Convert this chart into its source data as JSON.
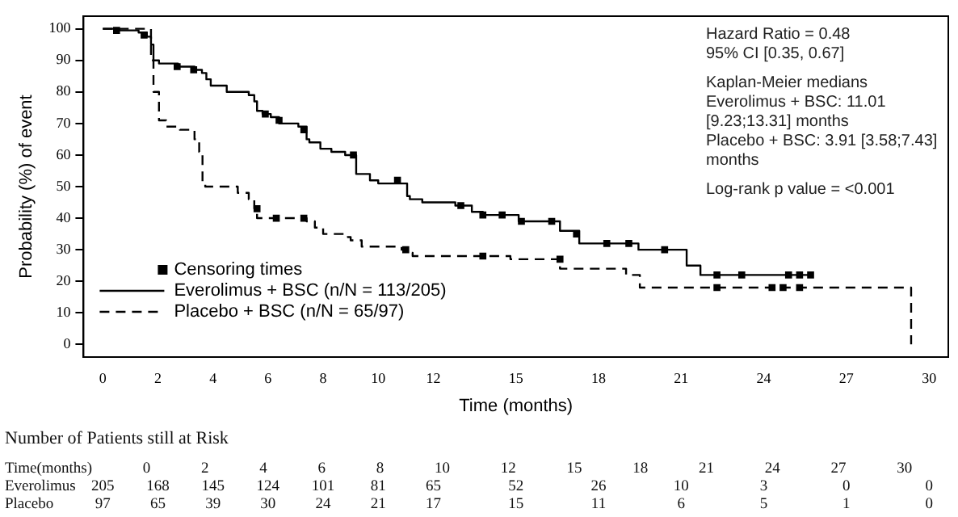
{
  "chart_data": {
    "type": "step",
    "xlabel": "Time (months)",
    "ylabel": "Probability (%) of event",
    "xlim": [
      -0.7,
      30.7
    ],
    "ylim": [
      -4,
      104
    ],
    "xticks": [
      0,
      2,
      4,
      6,
      8,
      10,
      12,
      15,
      18,
      21,
      24,
      27,
      30
    ],
    "yticks": [
      0,
      10,
      20,
      30,
      40,
      50,
      60,
      70,
      80,
      90,
      100
    ],
    "grid": false,
    "legend": "bottom left",
    "series": [
      {
        "name": "Censoring times",
        "type": "scatter",
        "marker": "square",
        "color": "#000000",
        "x": [
          0.5,
          1.5,
          2.7,
          3.3,
          5.9,
          6.4,
          7.3,
          9.1,
          10.7,
          13,
          13.8,
          14.5,
          15.2,
          16.3,
          17.2,
          18.3,
          19.1,
          20.4,
          22.3,
          23.2,
          24.9,
          25.3,
          25.7,
          5.6,
          6.3,
          7.3,
          11,
          13.8,
          16.6,
          22.3,
          24.3,
          24.7,
          25.3
        ],
        "values": [
          99.5,
          98,
          88,
          87,
          73,
          71,
          68,
          60,
          52,
          44,
          41,
          41,
          39,
          39,
          35,
          32,
          32,
          30,
          22,
          22,
          22,
          22,
          22,
          43,
          40,
          40,
          30,
          28,
          27,
          18,
          18,
          18,
          18
        ]
      },
      {
        "name": "Everolimus + BSC (n/N = 113/205)",
        "type": "step",
        "marker": "none",
        "line_style": "solid",
        "color": "#000000",
        "x": [
          0,
          0.6,
          1.3,
          1.6,
          1.75,
          1.84,
          2.04,
          2.73,
          3.33,
          3.6,
          3.76,
          3.92,
          4.5,
          5.3,
          5.5,
          5.6,
          5.8,
          6.1,
          6.4,
          7.1,
          7.4,
          7.5,
          7.9,
          8.3,
          8.8,
          9.2,
          9.7,
          10,
          11.05,
          11.15,
          11.6,
          12.8,
          13.4,
          13.8,
          15.1,
          16.6,
          17.3,
          19.45,
          21.2,
          21.7,
          25.7
        ],
        "values": [
          100,
          99.5,
          98.8,
          97.5,
          95,
          90,
          89,
          88,
          87,
          86,
          84,
          82,
          80,
          79,
          77,
          74,
          73,
          72,
          70,
          69,
          65,
          64,
          62,
          61,
          60,
          54,
          52,
          51,
          47,
          46,
          45,
          44,
          42,
          41,
          39,
          36,
          32,
          30,
          25,
          22,
          22
        ]
      },
      {
        "name": "Placebo + BSC (n/N = 65/97)",
        "type": "step",
        "marker": "none",
        "line_style": "dashed",
        "color": "#000000",
        "x": [
          0,
          1.75,
          1.84,
          2.04,
          2.3,
          2.8,
          3.33,
          3.5,
          3.55,
          3.62,
          3.72,
          4.2,
          4.9,
          5.3,
          5.5,
          5.6,
          7.4,
          7.7,
          8,
          8.9,
          9,
          9.4,
          10.85,
          11.15,
          11.25,
          14.8,
          16.6,
          19,
          19.5,
          29.35,
          29.35
        ],
        "values": [
          100,
          90,
          80,
          71,
          69,
          68,
          65,
          61,
          60,
          51,
          50,
          50,
          48,
          46,
          43,
          40,
          39,
          37,
          35,
          34,
          33,
          31,
          30,
          29,
          28,
          27,
          24,
          22,
          18,
          18,
          0
        ]
      }
    ],
    "annotations": [
      "Hazard Ratio = 0.48",
      "95% CI [0.35, 0.67]",
      "Kaplan-Meier medians",
      "Everolimus + BSC: 11.01 [9.23;13.31] months",
      "Placebo + BSC: 3.91 [3.58;7.43] months",
      "Log-rank p value = <0.001",
      "Number of Patients still at Risk",
      "Time(months) 0 2 4 6 8 10 12 15 18 21 24 27 30",
      "Everolimus 205 168 145 124 101 81 65 52 26 10 3 0 0",
      "Placebo 97 65 39 30 24 21 17 15 11 6 5 1 0"
    ]
  }
}
